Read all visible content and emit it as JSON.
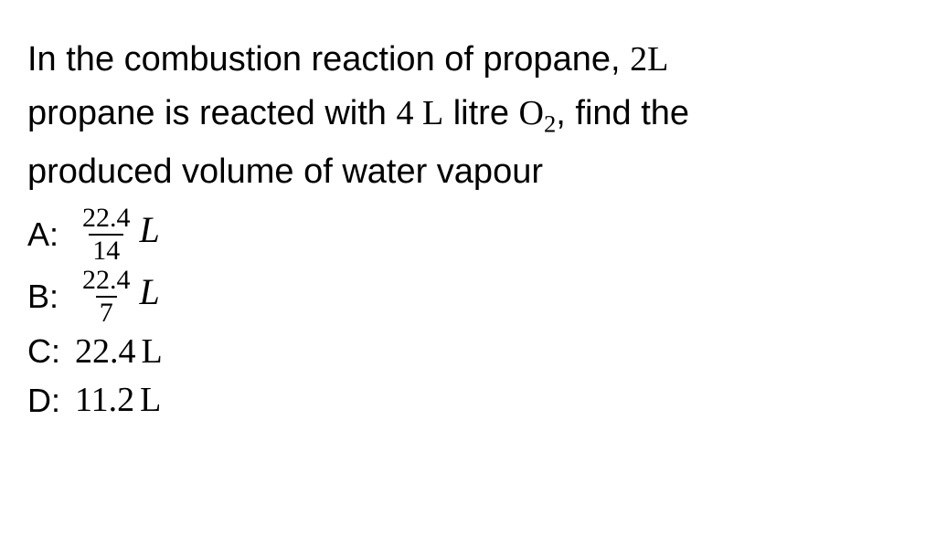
{
  "question": {
    "line1_pre": "In the combustion reaction of propane, ",
    "line1_math": "2L",
    "line2_pre": "propane is reacted with ",
    "line2_four": "4 L",
    "line2_mid": " litre ",
    "line2_o": "O",
    "line2_sub": "2",
    "line2_post": ", find the",
    "line3": "produced volume of water vapour"
  },
  "options": {
    "a": {
      "label": "A:",
      "num": "22.4",
      "den": "14",
      "unit": "L"
    },
    "b": {
      "label": "B:",
      "num": "22.4",
      "den": "7",
      "unit": "L"
    },
    "c": {
      "label": "C:",
      "value": "22.4",
      "unit": "L"
    },
    "d": {
      "label": "D:",
      "value": "11.2",
      "unit": "L"
    }
  }
}
